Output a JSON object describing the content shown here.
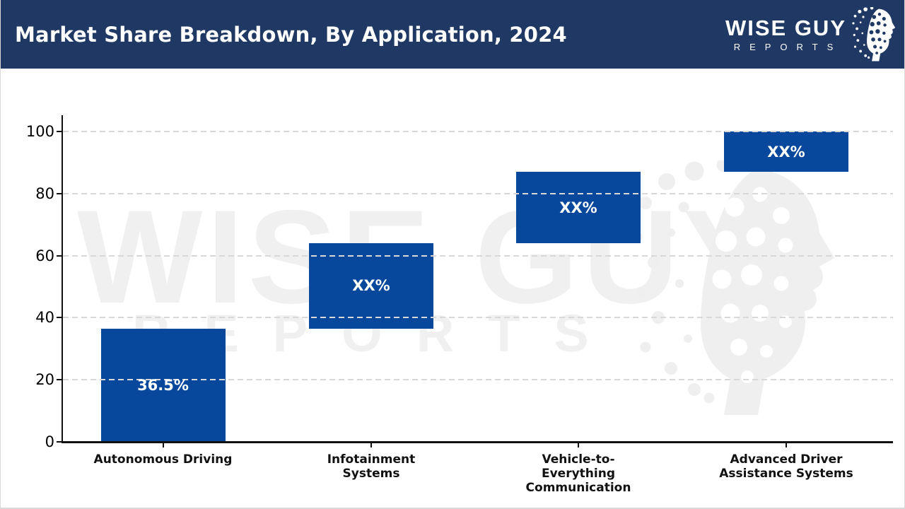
{
  "header": {
    "title": "Market Share Breakdown, By Application, 2024",
    "logo": {
      "line1": "WISE GUY",
      "line2": "REPORTS"
    }
  },
  "watermark": {
    "line1": "WISE GUY",
    "line2": "REPORTS"
  },
  "colors": {
    "header_bg": "#1f3864",
    "bar": "#07489c",
    "grid": "#d8d8d8",
    "axis": "#111111",
    "value_label_text": "#ffffff",
    "watermark": "#efefef"
  },
  "chart_data": {
    "type": "bar",
    "subtype": "floating-segment cumulative bars (waterfall-style market share)",
    "title": "Market Share Breakdown, By Application, 2024",
    "categories": [
      "Autonomous Driving",
      "Infotainment Systems",
      "Vehicle-to-Everything Communication",
      "Advanced Driver Assistance Systems"
    ],
    "category_label_lines": [
      [
        "Autonomous Driving"
      ],
      [
        "Infotainment",
        "Systems"
      ],
      [
        "Vehicle-to-",
        "Everything",
        "Communication"
      ],
      [
        "Advanced Driver",
        "Assistance Systems"
      ]
    ],
    "bars": [
      {
        "category": "Autonomous Driving",
        "from": 0,
        "to": 36.5,
        "label": "36.5%"
      },
      {
        "category": "Infotainment Systems",
        "from": 36.5,
        "to": 64,
        "label": "XX%"
      },
      {
        "category": "Vehicle-to-Everything Communication",
        "from": 64,
        "to": 87,
        "label": "XX%"
      },
      {
        "category": "Advanced Driver Assistance Systems",
        "from": 87,
        "to": 100,
        "label": "XX%"
      }
    ],
    "xlabel": "",
    "ylabel": "",
    "ylim": [
      0,
      100
    ],
    "yticks": [
      0,
      20,
      40,
      60,
      80,
      100
    ],
    "grid": "horizontal dashed, drawn over bars",
    "legend": "none"
  }
}
